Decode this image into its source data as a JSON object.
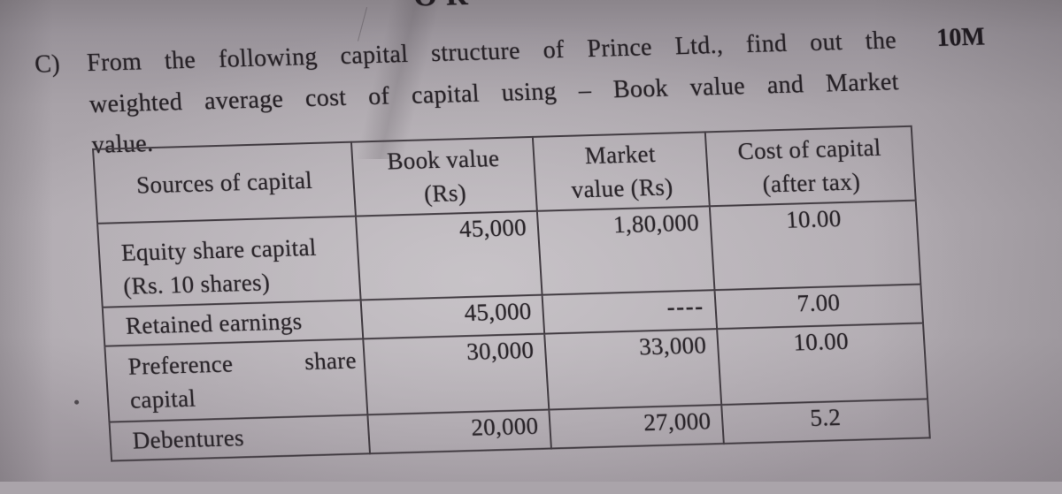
{
  "or_divider": "OR",
  "question": {
    "label": "C)",
    "marks": "10M",
    "lines": [
      "From the following capital structure of Prince Ltd., find out the",
      "weighted average cost of capital using – Book value and Market",
      "value."
    ]
  },
  "table": {
    "headers": [
      {
        "line1": "Sources of capital"
      },
      {
        "line1": "Book value",
        "line2": "(Rs)"
      },
      {
        "line1": "Market",
        "line2": "value (Rs)"
      },
      {
        "line1": "Cost of capital",
        "line2": "(after tax)"
      }
    ],
    "rows": [
      {
        "label_lines": [
          "Equity share capital",
          "(Rs. 10 shares)"
        ],
        "book_value": "45,000",
        "market_value": "1,80,000",
        "cost": "10.00"
      },
      {
        "label_lines": [
          "Retained earnings"
        ],
        "book_value": "45,000",
        "market_value": "----",
        "cost": "7.00"
      },
      {
        "label_lines": [
          "Preference share",
          "capital"
        ],
        "book_value": "30,000",
        "market_value": "33,000",
        "cost": "10.00"
      },
      {
        "label_lines": [
          "Debentures"
        ],
        "book_value": "20,000",
        "market_value": "27,000",
        "cost": "5.2"
      }
    ]
  },
  "colors": {
    "paper_light": "#b7b2b7",
    "paper_dark": "#8e888e",
    "ink": "#262126",
    "table_border": "#423c42"
  }
}
